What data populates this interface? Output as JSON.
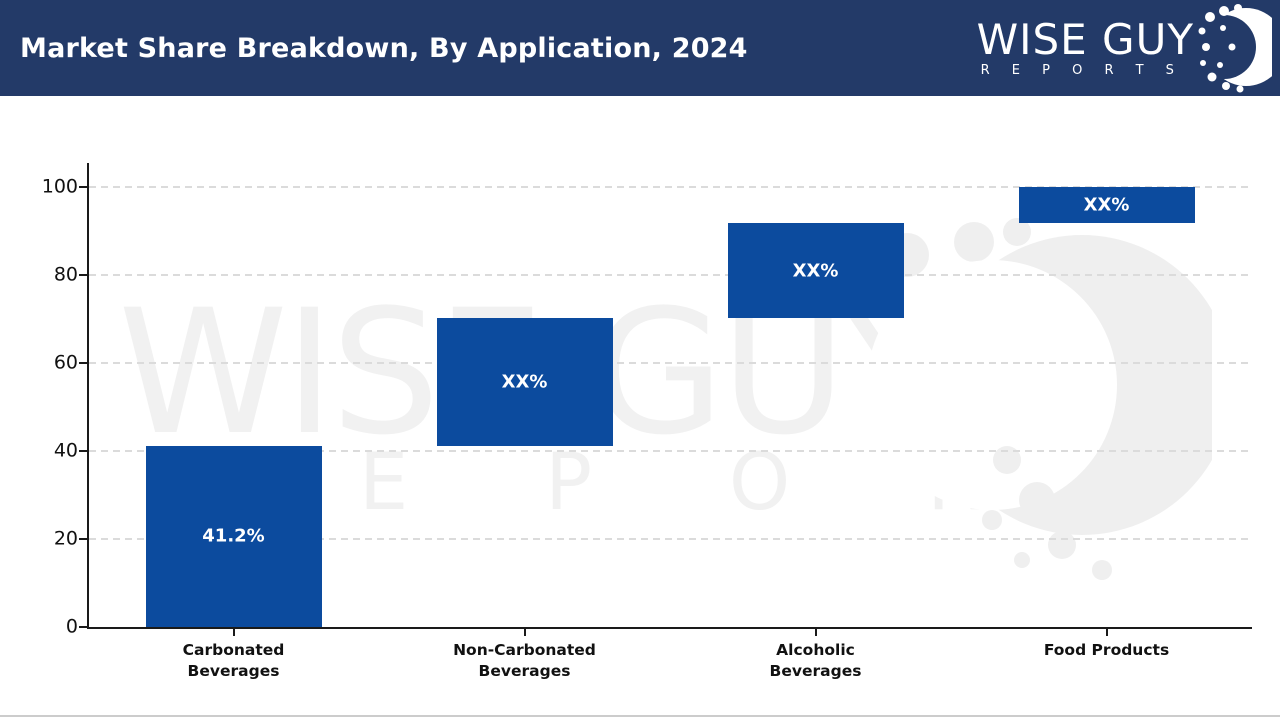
{
  "header": {
    "title": "Market Share Breakdown, By Application, 2024",
    "logo": {
      "wordmark": "WISE GUY",
      "subtext": "R E P O R T S",
      "face_icon": "dotted-face-profile"
    }
  },
  "watermark": {
    "wordmark": "WISE GUY",
    "subtext": "R E P O R T S",
    "face_icon": "dotted-face-profile"
  },
  "colors": {
    "header_bg": "#233A68",
    "bar_fill": "#0C4B9E",
    "bar_label": "#FFFFFF",
    "axis": "#1A1A1A",
    "grid": "#DBDBDB",
    "tick_label": "#111111",
    "watermark": "#F1F1F1",
    "bottom_rule": "#CCCCCC"
  },
  "chart_data": {
    "type": "bar",
    "subtype": "waterfall",
    "title": "Market Share Breakdown, By Application, 2024",
    "categories": [
      "Carbonated\nBeverages",
      "Non-Carbonated\nBeverages",
      "Alcoholic\nBeverages",
      "Food Products"
    ],
    "segments": [
      {
        "category": "Carbonated Beverages",
        "start": 0,
        "end": 41.2,
        "label": "41.2%"
      },
      {
        "category": "Non-Carbonated Beverages",
        "start": 41.2,
        "end": 70.2,
        "label": "XX%"
      },
      {
        "category": "Alcoholic Beverages",
        "start": 70.2,
        "end": 91.8,
        "label": "XX%"
      },
      {
        "category": "Food Products",
        "start": 91.8,
        "end": 100,
        "label": "XX%"
      }
    ],
    "xlabel": "",
    "ylabel": "",
    "ylim": [
      0,
      105
    ],
    "yticks": [
      0,
      20,
      40,
      60,
      80,
      100
    ],
    "grid": "horizontal-dashed",
    "legend": "none",
    "bar_color": "#0C4B9E"
  }
}
